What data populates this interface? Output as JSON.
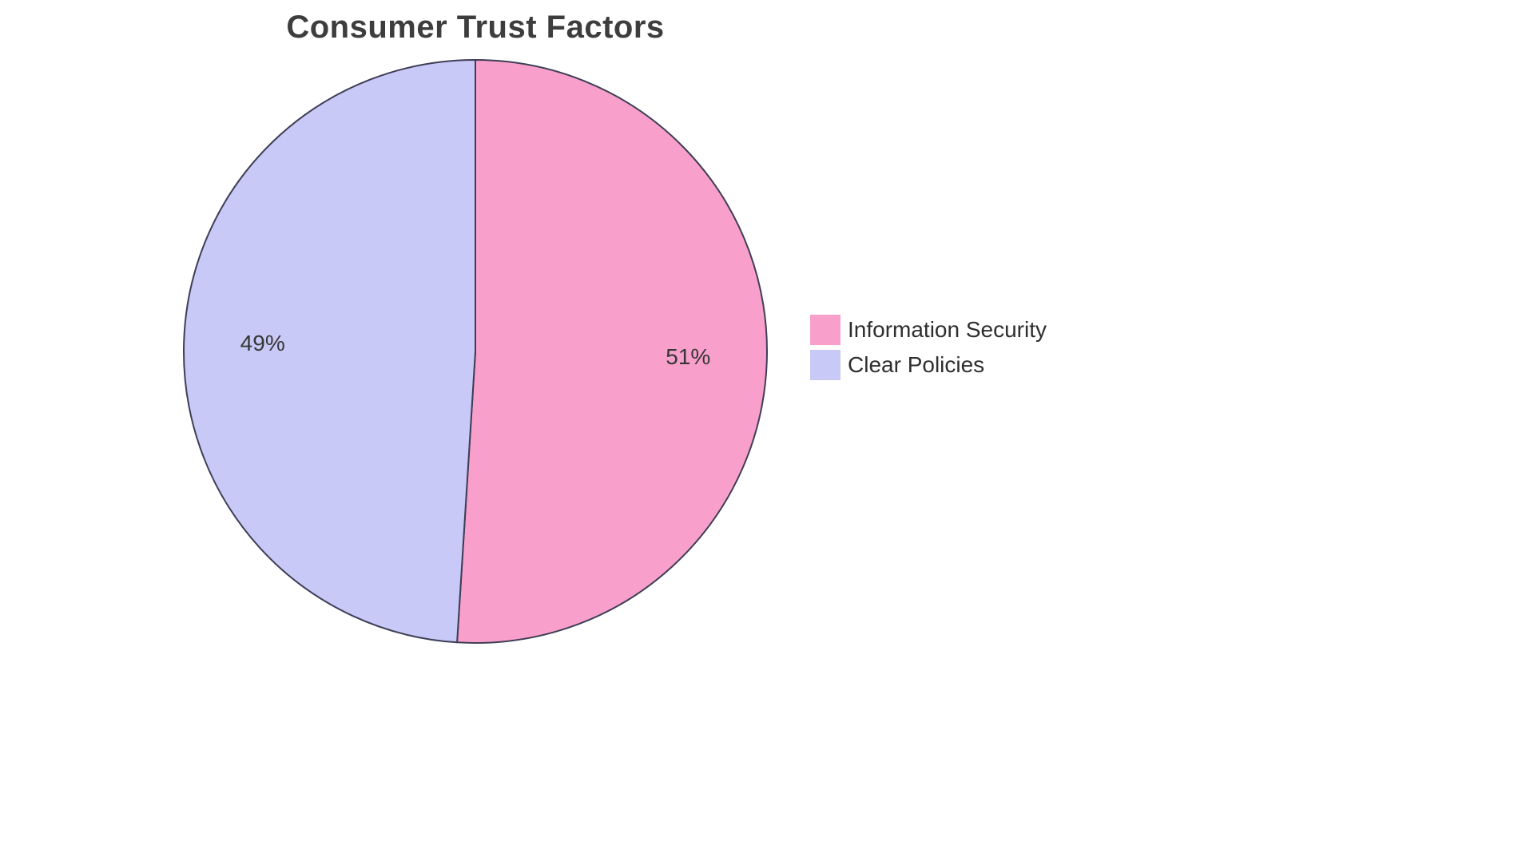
{
  "chart_data": {
    "type": "pie",
    "title": "Consumer Trust Factors",
    "series": [
      {
        "label": "Information Security",
        "value": 51,
        "pct_label": "51%",
        "color": "#F8A0CB"
      },
      {
        "label": "Clear Policies",
        "value": 49,
        "pct_label": "49%",
        "color": "#C8C9F6"
      }
    ],
    "start_angle_deg": -90,
    "direction": "clockwise",
    "outline_color": "#3E3E56",
    "label_color": "#363636",
    "legend_position": "right",
    "grid": false
  }
}
